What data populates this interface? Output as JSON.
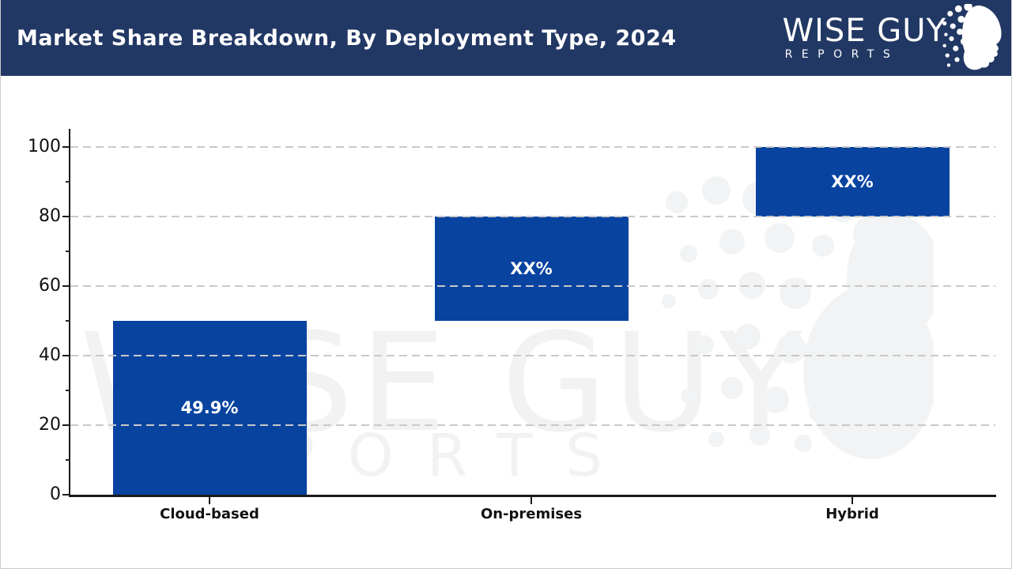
{
  "header": {
    "title": "Market Share Breakdown, By Deployment Type, 2024",
    "logo": {
      "line1": "WISE GUY",
      "line2": "REPORTS"
    }
  },
  "watermark": {
    "line1": "WISE GUY",
    "line2": "REPORTS"
  },
  "chart_data": {
    "type": "bar",
    "subtype": "floating-stacked-breakdown",
    "title": "Market Share Breakdown, By Deployment Type, 2024",
    "categories": [
      "Cloud-based",
      "On-premises",
      "Hybrid"
    ],
    "bars": [
      {
        "category": "Cloud-based",
        "from": 0,
        "to": 49.9,
        "label": "49.9%"
      },
      {
        "category": "On-premises",
        "from": 49.9,
        "to": 80,
        "label": "XX%"
      },
      {
        "category": "Hybrid",
        "from": 80,
        "to": 100,
        "label": "XX%"
      }
    ],
    "xlabel": "",
    "ylabel": "",
    "ylim": [
      0,
      105
    ],
    "y_ticks": [
      0,
      20,
      40,
      60,
      80,
      100
    ],
    "y_minor_ticks": [
      10,
      30,
      50,
      70,
      90
    ],
    "grid": "horizontal-dashed",
    "legend": "none",
    "bar_color": "#0843a0",
    "bar_label_color": "#ffffff"
  },
  "colors": {
    "header_bg": "#223864",
    "bar": "#0843a0",
    "grid": "#c9c9c9",
    "axis": "#1a1a1a",
    "text": "#111111",
    "watermark": "#f2f2f2",
    "page_border": "#cccccc"
  }
}
